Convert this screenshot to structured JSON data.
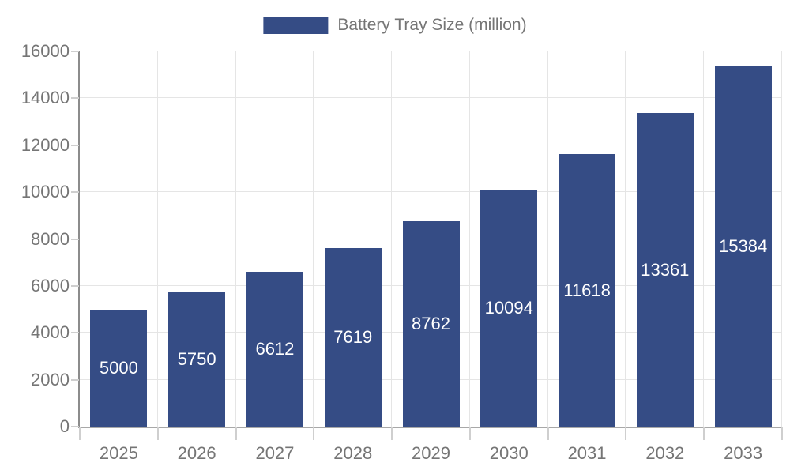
{
  "legend": {
    "label": "Battery Tray Size (million)"
  },
  "chart_data": {
    "type": "bar",
    "title": "Battery Tray Size (million)",
    "series_name": "Battery Tray Size (million)",
    "categories": [
      "2025",
      "2026",
      "2027",
      "2028",
      "2029",
      "2030",
      "2031",
      "2032",
      "2033"
    ],
    "values": [
      5000,
      5750,
      6612,
      7619,
      8762,
      10094,
      11618,
      13361,
      15384
    ],
    "xlabel": "",
    "ylabel": "",
    "ylim": [
      0,
      16000
    ],
    "yticks": [
      0,
      2000,
      4000,
      6000,
      8000,
      10000,
      12000,
      14000,
      16000
    ],
    "grid": true,
    "legend_position": "top-center",
    "value_label_position": "inside-center"
  },
  "colors": {
    "bar": "#354C85",
    "axis_text": "#757575",
    "value_label_text": "#ffffff",
    "grid_line": "#e5e5e5",
    "axis_spine": "#8c8c8c",
    "baseline": "#a8a8a8",
    "tick": "#cfcfcf",
    "background": "#ffffff"
  }
}
